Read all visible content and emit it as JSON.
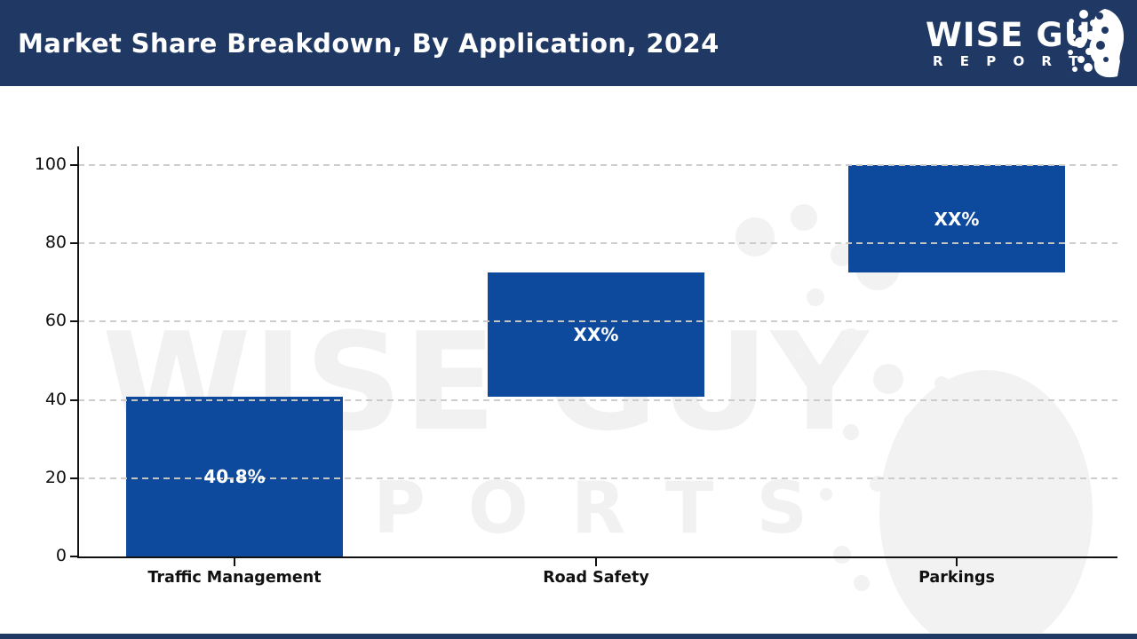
{
  "header": {
    "title": "Market Share Breakdown, By Application, 2024",
    "background_color": "#1f3864"
  },
  "logo": {
    "line1": "WISE GUY",
    "line2": "R E P O R T S"
  },
  "watermark": {
    "line1": "WISE GUY",
    "line2": "REPORTS"
  },
  "chart_data": {
    "type": "bar",
    "subtype": "waterfall-floating-bars",
    "title": "Market Share Breakdown, By Application, 2024",
    "categories": [
      "Traffic Management",
      "Road Safety",
      "Parkings"
    ],
    "segments": [
      {
        "category": "Traffic Management",
        "start": 0,
        "end": 40.8,
        "label": "40.8%"
      },
      {
        "category": "Road Safety",
        "start": 40.8,
        "end": 72.5,
        "label": "XX%"
      },
      {
        "category": "Parkings",
        "start": 72.5,
        "end": 100,
        "label": "XX%"
      }
    ],
    "xlabel": "",
    "ylabel": "",
    "yticks": [
      0,
      20,
      40,
      60,
      80,
      100
    ],
    "ylim": [
      0,
      100
    ],
    "grid": "horizontal-dashed, drawn above bars",
    "legend": "none",
    "bar_color": "#0d4a9e",
    "value_label_color": "#ffffff",
    "axis_color": "#111111"
  }
}
